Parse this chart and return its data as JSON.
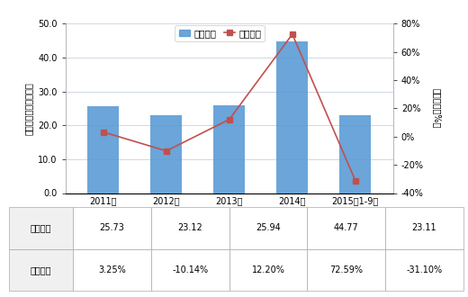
{
  "categories": [
    "2011年",
    "2012年",
    "2013年",
    "2014年",
    "2015年1-9月"
  ],
  "export_values": [
    25.73,
    23.12,
    25.94,
    44.77,
    23.11
  ],
  "growth_rates": [
    3.25,
    -10.14,
    12.2,
    72.59,
    -31.1
  ],
  "bar_color": "#5B9BD5",
  "line_color": "#C0504D",
  "marker_color": "#C0504D",
  "left_ylabel": "出口金额（百万美元）",
  "right_ylabel": "同比增速（%）",
  "ylim_left": [
    0,
    50
  ],
  "ylim_right": [
    -40,
    80
  ],
  "left_yticks": [
    0.0,
    10.0,
    20.0,
    30.0,
    40.0,
    50.0
  ],
  "right_yticks": [
    -40,
    -20,
    0,
    20,
    40,
    60,
    80
  ],
  "legend_labels": [
    "出口金额",
    "同比增长"
  ],
  "table_row1_label": "出口金额",
  "table_row2_label": "同比增长",
  "table_row1_values": [
    "25.73",
    "23.12",
    "25.94",
    "44.77",
    "23.11"
  ],
  "table_row2_values": [
    "3.25%",
    "-10.14%",
    "12.20%",
    "72.59%",
    "-31.10%"
  ],
  "grid_color": "#D0D8E4",
  "background_color": "#FFFFFF",
  "fig_width": 5.2,
  "fig_height": 3.3,
  "dpi": 100
}
